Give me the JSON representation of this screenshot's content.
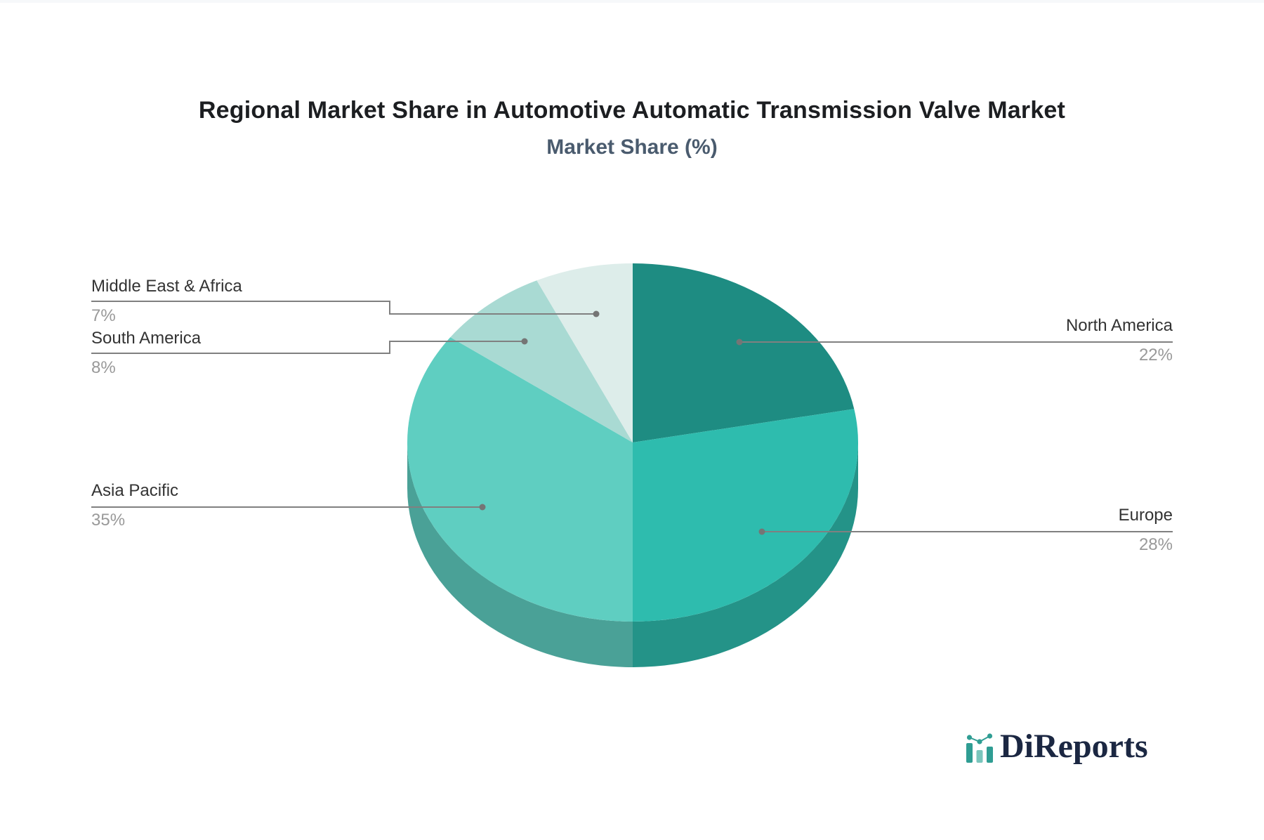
{
  "header": {
    "title": "Regional Market Share in Automotive Automatic Transmission Valve Market",
    "subtitle": "Market Share (%)"
  },
  "chart_data": {
    "type": "pie",
    "style": "3d",
    "title": "Regional Market Share in Automotive Automatic Transmission Valve Market",
    "subtitle": "Market Share (%)",
    "unit": "%",
    "start_angle": "top",
    "direction": "clockwise",
    "categories": [
      "North America",
      "Europe",
      "Asia Pacific",
      "South America",
      "Middle East & Africa"
    ],
    "values": [
      22,
      28,
      35,
      8,
      7
    ],
    "labels": [
      "22%",
      "28%",
      "35%",
      "8%",
      "7%"
    ],
    "colors": [
      "#1e8c82",
      "#2ebcae",
      "#5fcec1",
      "#a9dad3",
      "#ddedea"
    ],
    "callout_line_color": "#808080",
    "callout_dot_color": "#757575",
    "label_text_color": "#333333",
    "percent_text_color": "#999999",
    "legend": "none"
  },
  "brand": {
    "name": "DiReports",
    "icon": "bar-chart-icon",
    "text_color": "#1b2742",
    "icon_color": "#2f9d93",
    "icon_light_color": "#7ac5bc"
  }
}
